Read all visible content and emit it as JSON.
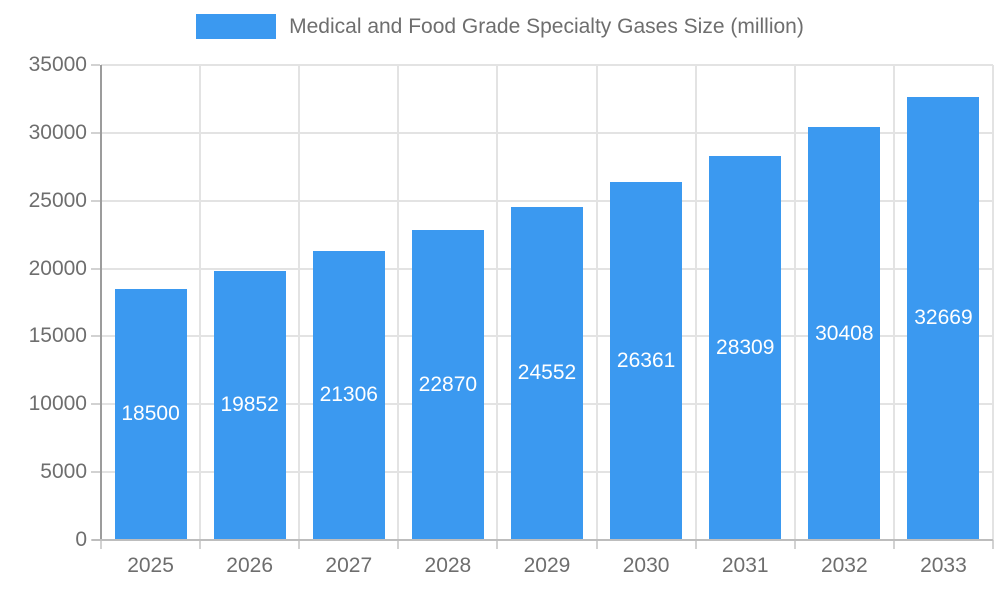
{
  "chart_data": {
    "type": "bar",
    "title": "Medical and Food Grade Specialty Gases Size (million)",
    "categories": [
      "2025",
      "2026",
      "2027",
      "2028",
      "2029",
      "2030",
      "2031",
      "2032",
      "2033"
    ],
    "values": [
      18500,
      19852,
      21306,
      22870,
      24552,
      26361,
      28309,
      30408,
      32669
    ],
    "xlabel": "",
    "ylabel": "",
    "ylim": [
      0,
      35000
    ],
    "ytick_step": 5000,
    "ytick_labels": [
      "0",
      "5000",
      "10000",
      "15000",
      "20000",
      "25000",
      "30000",
      "35000"
    ],
    "grid": true,
    "legend_position": "top",
    "colors": {
      "bar": "#3b99f0",
      "value_label": "#ffffff",
      "axis_text": "#6e6e6e",
      "gridline": "#e3e3e3",
      "y_axis_line": "#9c9c9c",
      "x_axis_line": "#bdbdbd"
    }
  },
  "legend": {
    "label": "Medical and Food Grade Specialty Gases Size (million)"
  }
}
